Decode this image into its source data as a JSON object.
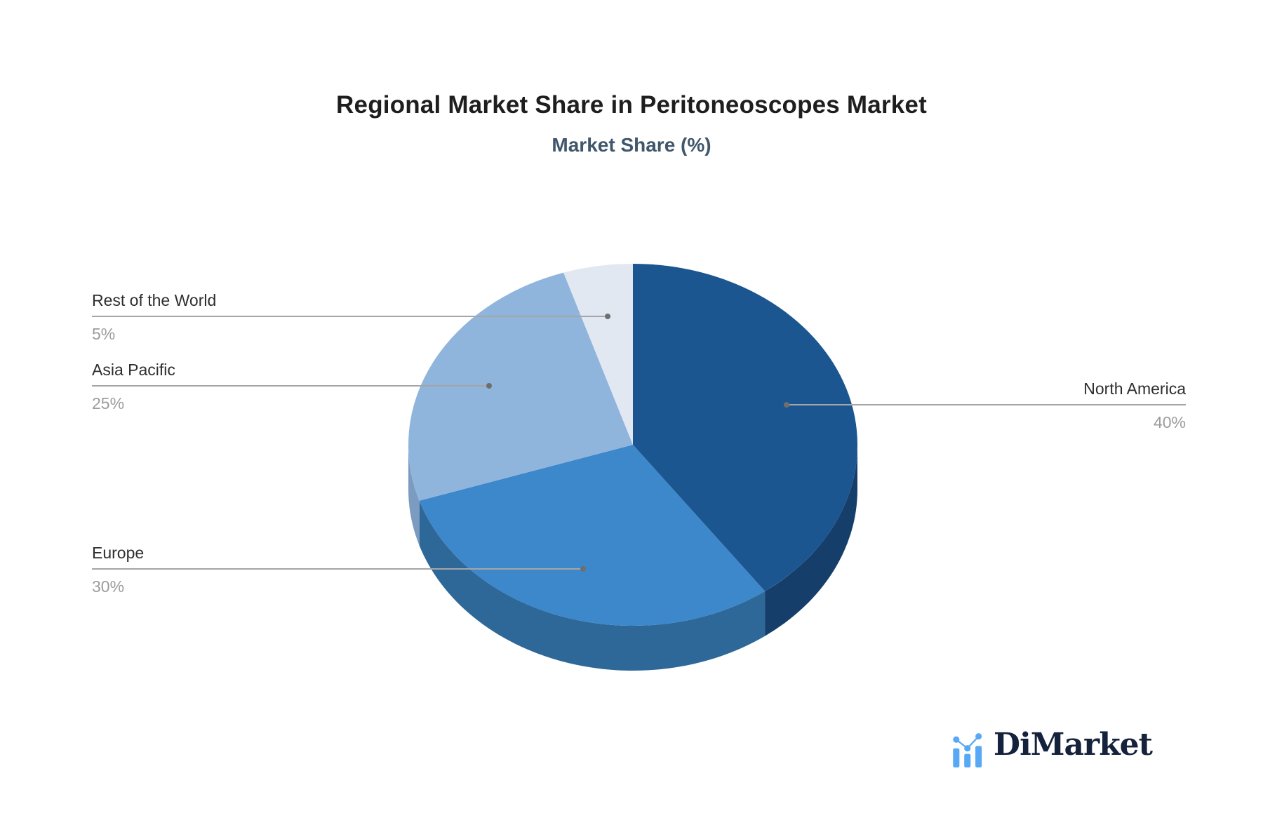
{
  "title": "Regional Market Share in Peritoneoscopes Market",
  "subtitle": "Market Share (%)",
  "logo": {
    "text": "DiMarket",
    "icon": "bar-line-chart-icon",
    "icon_color": "#58a9f5",
    "text_color": "#15223c"
  },
  "connector": {
    "line_color": "#a5a5a5",
    "dot_color": "#6e6e6e",
    "name_color": "#2e2e2e",
    "pct_color": "#9c9c9c"
  },
  "chart_data": {
    "type": "pie",
    "title": "Regional Market Share in Peritoneoscopes Market",
    "subtitle": "Market Share (%)",
    "unit": "%",
    "style": "3d-pie",
    "start_angle_deg": 0,
    "direction": "clockwise",
    "legend_position": "none",
    "slices": [
      {
        "label": "North America",
        "value": 40,
        "pct_label": "40%",
        "color": "#1b5690",
        "side_color": "#153f6a"
      },
      {
        "label": "Europe",
        "value": 30,
        "pct_label": "30%",
        "color": "#3d87cb",
        "side_color": "#2e6899"
      },
      {
        "label": "Asia Pacific",
        "value": 25,
        "pct_label": "25%",
        "color": "#90b5dc",
        "side_color": "#7b9cc0"
      },
      {
        "label": "Rest of the World",
        "value": 5,
        "pct_label": "5%",
        "color": "#e2e8f2",
        "side_color": "#c9d2e0"
      }
    ]
  }
}
